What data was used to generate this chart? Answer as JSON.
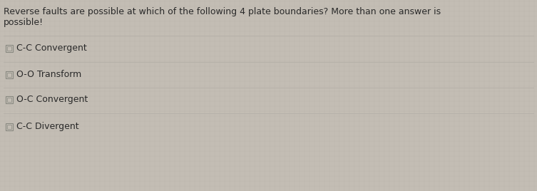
{
  "title_line1": "Reverse faults are possible at which of the following 4 plate boundaries? More than one answer is",
  "title_line2": "possible!",
  "options": [
    "C-C Convergent",
    "O-O Transform",
    "O-C Convergent",
    "C-C Divergent"
  ],
  "bg_color": "#c3bdb4",
  "grid_color": "#b5b0a8",
  "text_color": "#2a2a2a",
  "checkbox_edge_color": "#888880",
  "checkbox_face_color": "#c3bdb4",
  "title_fontsize": 9.0,
  "option_fontsize": 9.0,
  "fig_width": 7.53,
  "fig_height": 2.68
}
